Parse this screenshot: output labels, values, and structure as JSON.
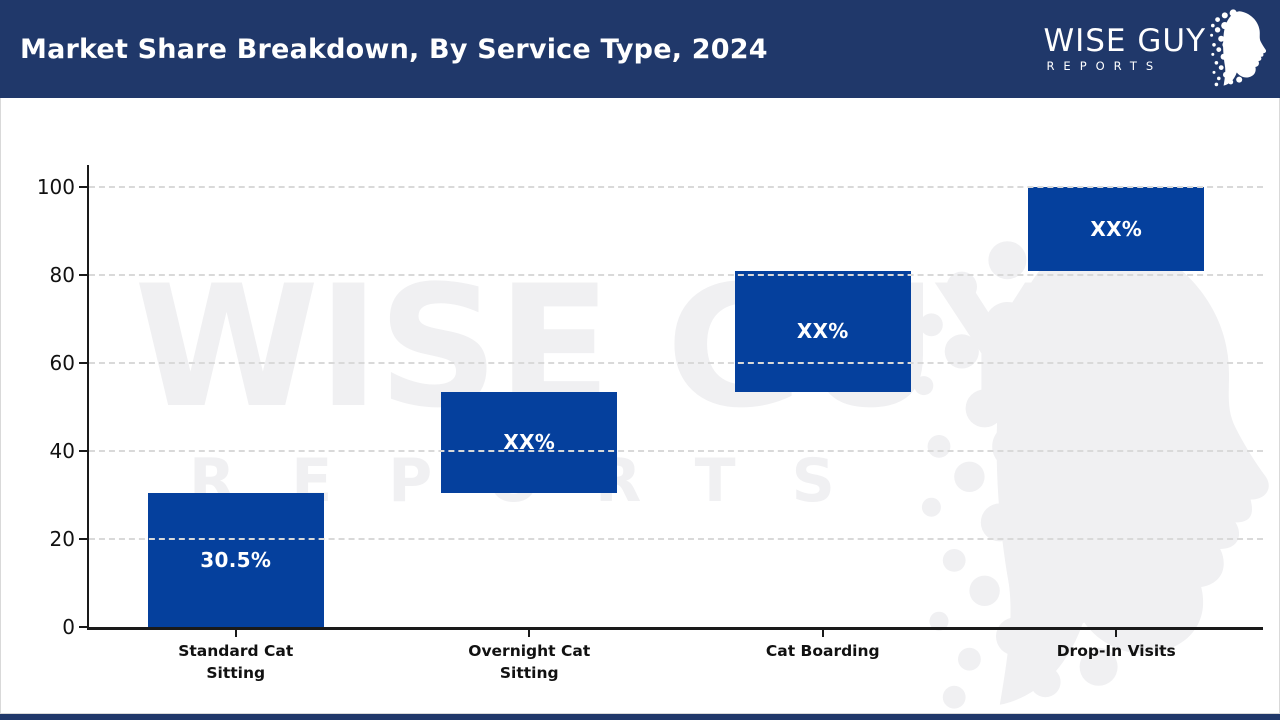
{
  "header": {
    "title": "Market Share Breakdown, By Service Type, 2024",
    "logo": {
      "name": "WISE GUY",
      "sub": "REPORTS"
    }
  },
  "watermark": {
    "line1": "WISE GUY",
    "line2": "REPORTS"
  },
  "chart_data": {
    "type": "bar",
    "subtype": "waterfall",
    "title": "Market Share Breakdown, By Service Type, 2024",
    "categories": [
      "Standard Cat\nSitting",
      "Overnight Cat\nSitting",
      "Cat Boarding",
      "Drop-In Visits"
    ],
    "series": [
      {
        "name": "Market Share (%)",
        "segments": [
          {
            "category": "Standard Cat Sitting",
            "start": 0,
            "end": 30.5,
            "label": "30.5%"
          },
          {
            "category": "Overnight Cat Sitting",
            "start": 30.5,
            "end": 53.5,
            "label": "XX%"
          },
          {
            "category": "Cat Boarding",
            "start": 53.5,
            "end": 81,
            "label": "XX%"
          },
          {
            "category": "Drop-In Visits",
            "start": 81,
            "end": 100,
            "label": "XX%"
          }
        ]
      }
    ],
    "xlabel": "",
    "ylabel": "",
    "ylim": [
      0,
      100
    ],
    "yticks": [
      0,
      20,
      40,
      60,
      80,
      100
    ],
    "grid": "horizontal-dashed-over-bars",
    "legend": "none",
    "bar_color": "#05409d",
    "bar_label_color": "#ffffff",
    "axis_color": "#1a1a1a",
    "gridline_color": "#d9d9d9",
    "header_bg": "#20386a",
    "footer_bg": "#20386a",
    "watermark_color": "#f0f0f2"
  }
}
